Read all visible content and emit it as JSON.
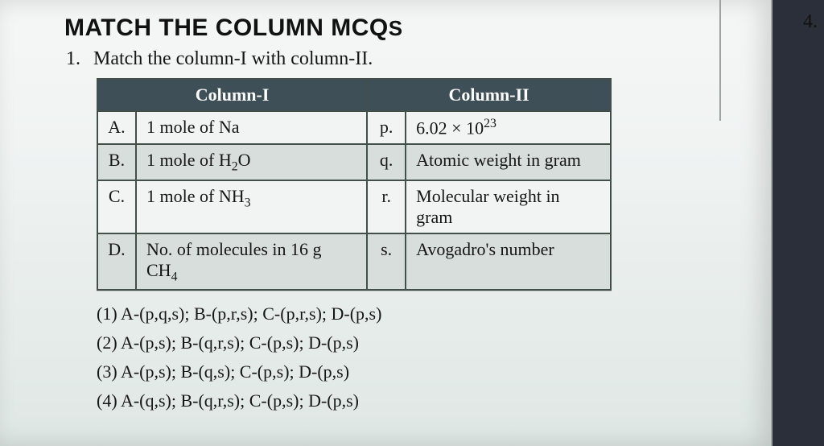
{
  "heading_main": "MATCH THE COLUMN MCQ",
  "heading_suffix": "S",
  "right_marker": "4.",
  "question": {
    "num": "1.",
    "text": "Match the column-I with column-II."
  },
  "table": {
    "headers": {
      "c1": "Column-I",
      "c2": "Column-II"
    },
    "rows": [
      {
        "la": "A.",
        "ca": "1 mole of Na",
        "lb": "p.",
        "cb": "6.02 × 10",
        "cb_sup": "23"
      },
      {
        "la": "B.",
        "ca": "1 mole of H",
        "ca_sub": "2",
        "ca_after": "O",
        "lb": "q.",
        "cb": "Atomic weight in gram"
      },
      {
        "la": "C.",
        "ca": "1 mole of NH",
        "ca_sub": "3",
        "ca_after": "",
        "lb": "r.",
        "cb": "Molecular weight in gram"
      },
      {
        "la": "D.",
        "ca": "No. of molecules in 16 g CH",
        "ca_sub": "4",
        "ca_after": "",
        "lb": "s.",
        "cb": "Avogadro's number"
      }
    ]
  },
  "options": [
    "(1)  A-(p,q,s); B-(p,r,s); C-(p,r,s); D-(p,s)",
    "(2)  A-(p,s); B-(q,r,s); C-(p,s); D-(p,s)",
    "(3)  A-(p,s); B-(q,s); C-(p,s); D-(p,s)",
    "(4)  A-(q,s); B-(q,r,s); C-(p,s); D-(p,s)"
  ]
}
